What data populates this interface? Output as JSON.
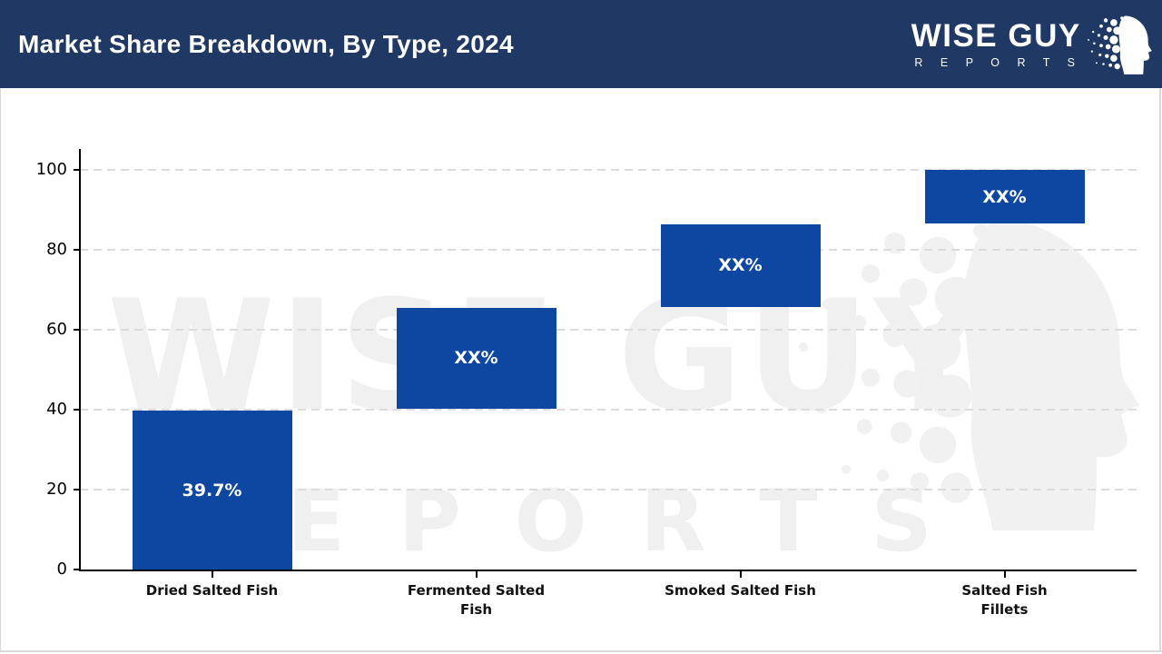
{
  "header": {
    "title": "Market Share Breakdown, By Type, 2024",
    "logo": {
      "name_line": "WISE GUY",
      "reports_line": "R E P O R T S"
    }
  },
  "watermark": {
    "line1": "WISE GUY",
    "line2": "R E P O R T S"
  },
  "colors": {
    "header_bg": "#1f3864",
    "bar": "#0d47a1",
    "grid": "#dcdcdc",
    "axis": "#000000",
    "watermark": "#f0f0f0",
    "frame_border": "#d9d9d9"
  },
  "chart_data": {
    "type": "bar",
    "subtype": "waterfall",
    "title": "Market Share Breakdown, By Type, 2024",
    "categories": [
      "Dried Salted Fish",
      "Fermented Salted Fish",
      "Smoked Salted Fish",
      "Salted Fish Fillets"
    ],
    "categories_display": [
      "Dried Salted Fish",
      "Fermented Salted\nFish",
      "Smoked Salted Fish",
      "Salted Fish\nFillets"
    ],
    "series": [
      {
        "name": "Market share (%)",
        "segments": [
          {
            "category": "Dried Salted Fish",
            "start": 0,
            "end": 39.7,
            "label": "39.7%"
          },
          {
            "category": "Fermented Salted Fish",
            "start": 40.2,
            "end": 65.5,
            "label": "XX%"
          },
          {
            "category": "Smoked Salted Fish",
            "start": 65.7,
            "end": 86.4,
            "label": "XX%"
          },
          {
            "category": "Salted Fish Fillets",
            "start": 86.5,
            "end": 100,
            "label": "XX%"
          }
        ]
      }
    ],
    "bar_labels": [
      "39.7%",
      "XX%",
      "XX%",
      "XX%"
    ],
    "xlabel": "",
    "ylabel": "",
    "ylim": [
      0,
      100
    ],
    "yticks": [
      0,
      20,
      40,
      60,
      80,
      100
    ],
    "grid": "horizontal-dashed",
    "legend": null,
    "bar_color": "#0d47a1"
  }
}
